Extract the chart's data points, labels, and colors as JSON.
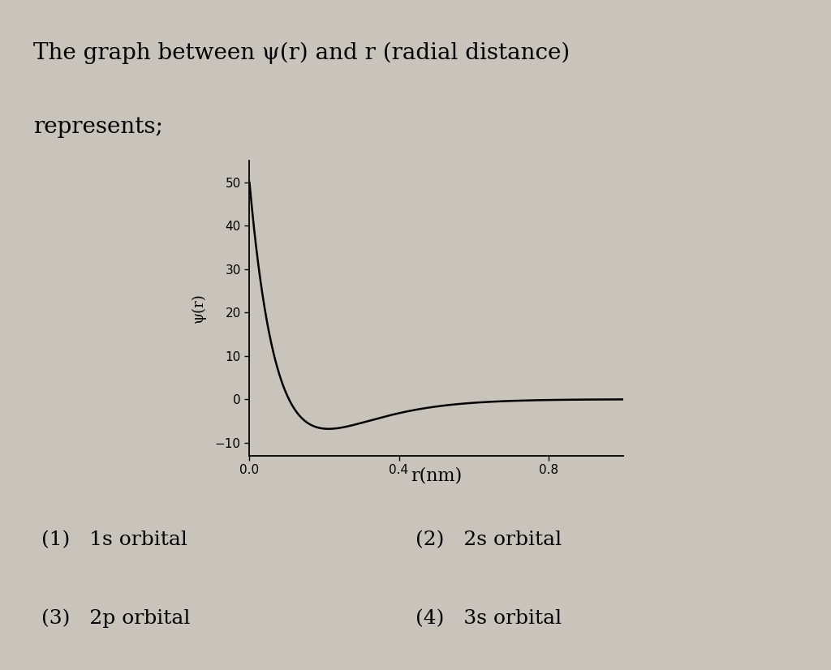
{
  "xlabel": "r(nm)",
  "ylabel": "ψ(r)",
  "ylim": [
    -13,
    55
  ],
  "xlim": [
    0,
    1.0
  ],
  "yticks": [
    -10,
    0,
    10,
    20,
    30,
    40,
    50
  ],
  "xticks": [
    0,
    0.4,
    0.8
  ],
  "line_color": "#000000",
  "bg_color": "#c8c8c8",
  "figure_bg": "#c8c4bc",
  "title_line1": "The graph between ψ(r) and r (radial distance)",
  "title_line2": "represents;",
  "opt1": "(1)   1s orbital",
  "opt2": "(2)   2s orbital",
  "opt3": "(3)   2p orbital",
  "opt4": "(4)   3s orbital",
  "opt_fontsize": 18,
  "title_fontsize": 20,
  "axis_fontsize": 13,
  "tick_fontsize": 11
}
